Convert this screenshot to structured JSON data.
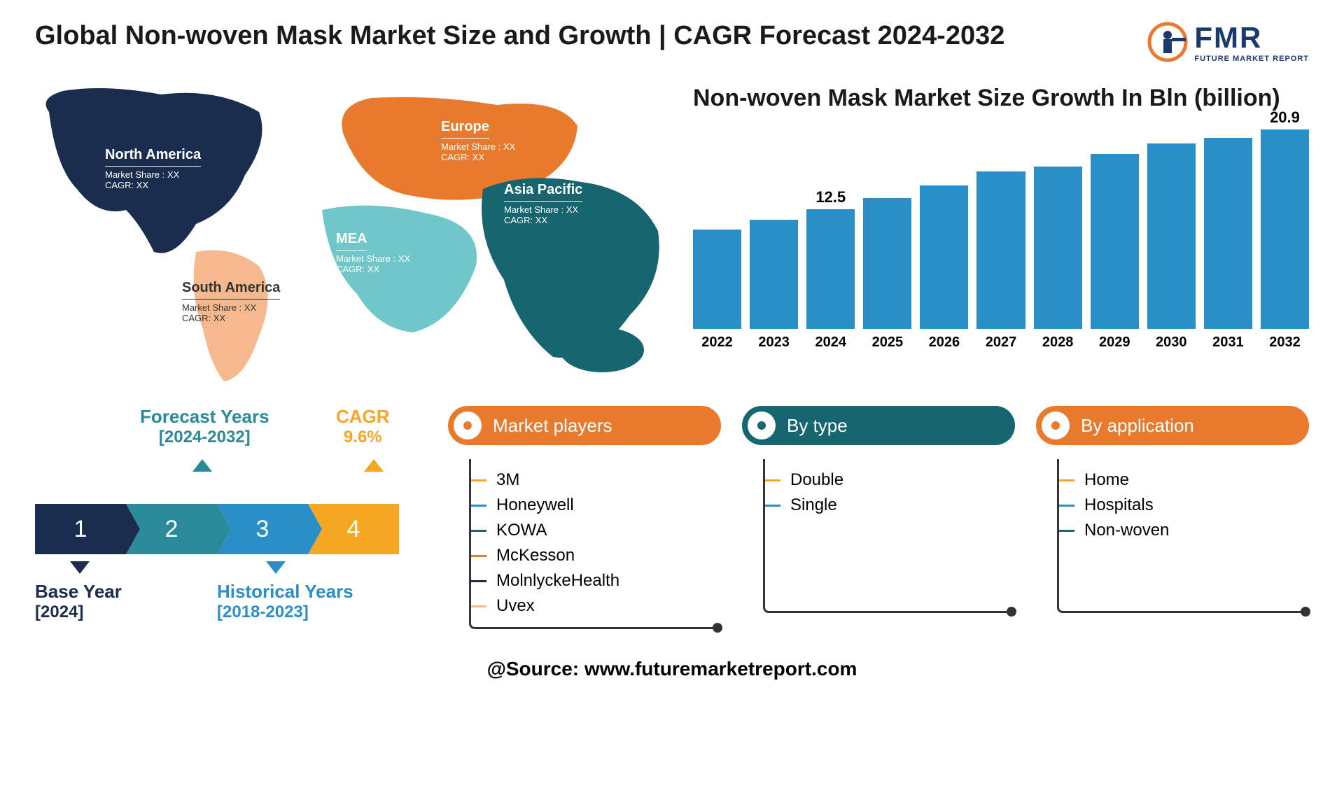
{
  "title": "Global Non-woven Mask Market Size and Growth | CAGR Forecast 2024-2032",
  "logo": {
    "fmr": "FMR",
    "sub": "FUTURE MARKET REPORT"
  },
  "colors": {
    "navy": "#1a2d4e",
    "orange": "#e87a2e",
    "teal": "#2a8a99",
    "cyan": "#6fc7c9",
    "peach": "#f6b98d",
    "tealdark": "#17656f",
    "blue": "#2b8fc7",
    "bar": "#2b8fc7",
    "yellow": "#f5a623",
    "text": "#1a1a1a"
  },
  "map": {
    "regions": [
      {
        "key": "na",
        "name": "North America",
        "ms": "Market Share : XX",
        "cagr": "CAGR: XX",
        "color": "#1a2d4e",
        "label_color": "#ffffff"
      },
      {
        "key": "sa",
        "name": "South America",
        "ms": "Market Share : XX",
        "cagr": "CAGR: XX",
        "color": "#f6b98d",
        "label_color": "#333333"
      },
      {
        "key": "eu",
        "name": "Europe",
        "ms": "Market Share : XX",
        "cagr": "CAGR: XX",
        "color": "#e87a2e",
        "label_color": "#ffffff"
      },
      {
        "key": "mea",
        "name": "MEA",
        "ms": "Market Share : XX",
        "cagr": "CAGR: XX",
        "color": "#6fc7c9",
        "label_color": "#ffffff"
      },
      {
        "key": "apac",
        "name": "Asia Pacific",
        "ms": "Market Share : XX",
        "cagr": "CAGR: XX",
        "color": "#17656f",
        "label_color": "#ffffff"
      }
    ]
  },
  "chart": {
    "title": "Non-woven Mask Market Size Growth In Bln (billion)",
    "type": "bar",
    "bar_color": "#2b8fc7",
    "categories": [
      "2022",
      "2023",
      "2024",
      "2025",
      "2026",
      "2027",
      "2028",
      "2029",
      "2030",
      "2031",
      "2032"
    ],
    "values": [
      10.4,
      11.4,
      12.5,
      13.7,
      15.0,
      16.5,
      17.0,
      18.3,
      19.4,
      20.0,
      20.9
    ],
    "value_labels": {
      "2": "12.5",
      "10": "20.9"
    },
    "ylim": [
      0,
      22
    ],
    "bar_width": 0.8,
    "label_fontsize": 20,
    "value_fontsize": 22,
    "background_color": "#ffffff"
  },
  "timeline": {
    "forecast": {
      "label": "Forecast Years",
      "range": "[2024-2032]",
      "color": "#2a8a99"
    },
    "cagr": {
      "label": "CAGR",
      "value": "9.6%",
      "color": "#f5a623"
    },
    "base": {
      "label": "Base Year",
      "range": "[2024]",
      "color": "#1a2d4e"
    },
    "hist": {
      "label": "Historical Years",
      "range": "[2018-2023]",
      "color": "#2b8fc7"
    },
    "boxes": [
      {
        "n": "1",
        "color": "#1a2d4e"
      },
      {
        "n": "2",
        "color": "#2a8a99"
      },
      {
        "n": "3",
        "color": "#2b8fc7"
      },
      {
        "n": "4",
        "color": "#f5a623"
      }
    ]
  },
  "categories": [
    {
      "key": "players",
      "title": "Market players",
      "header_color": "#e87a2e",
      "items": [
        {
          "label": "3M",
          "tick": "#f5a623"
        },
        {
          "label": "Honeywell",
          "tick": "#2b8fc7"
        },
        {
          "label": "KOWA",
          "tick": "#17656f"
        },
        {
          "label": "McKesson",
          "tick": "#e87a2e"
        },
        {
          "label": "MolnlyckeHealth",
          "tick": "#1a2d4e"
        },
        {
          "label": "Uvex",
          "tick": "#f6b98d"
        }
      ]
    },
    {
      "key": "type",
      "title": "By type",
      "header_color": "#17656f",
      "items": [
        {
          "label": "Double",
          "tick": "#f5a623"
        },
        {
          "label": "Single",
          "tick": "#2b8fc7"
        }
      ]
    },
    {
      "key": "application",
      "title": "By application",
      "header_color": "#e87a2e",
      "items": [
        {
          "label": "Home",
          "tick": "#f5a623"
        },
        {
          "label": "Hospitals",
          "tick": "#2b8fc7"
        },
        {
          "label": "Non-woven",
          "tick": "#17656f"
        }
      ]
    }
  ],
  "source": "@Source: www.futuremarketreport.com"
}
